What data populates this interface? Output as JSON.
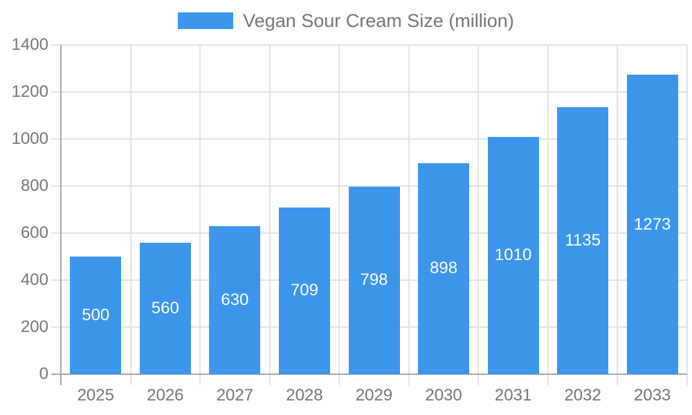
{
  "legend": {
    "label": "Vegan Sour Cream Size (million)"
  },
  "chart_data": {
    "type": "bar",
    "title": "Vegan Sour Cream Size (million)",
    "categories": [
      "2025",
      "2026",
      "2027",
      "2028",
      "2029",
      "2030",
      "2031",
      "2032",
      "2033"
    ],
    "series": [
      {
        "name": "Vegan Sour Cream Size (million)",
        "values": [
          500,
          560,
          630,
          709,
          798,
          898,
          1010,
          1135,
          1273
        ]
      }
    ],
    "xlabel": "",
    "ylabel": "",
    "ylim": [
      0,
      1400
    ],
    "yticks": [
      0,
      200,
      400,
      600,
      800,
      1000,
      1200,
      1400
    ],
    "grid": true,
    "legend_position": "top",
    "bar_value_labels_visible": true,
    "colors": {
      "bar": "#3b96ec",
      "bar_label": "#ffffff",
      "axis_text": "#757575",
      "gridline": "#e3e3e3",
      "axis_line": "#a6a6a6",
      "background": "#ffffff"
    }
  }
}
